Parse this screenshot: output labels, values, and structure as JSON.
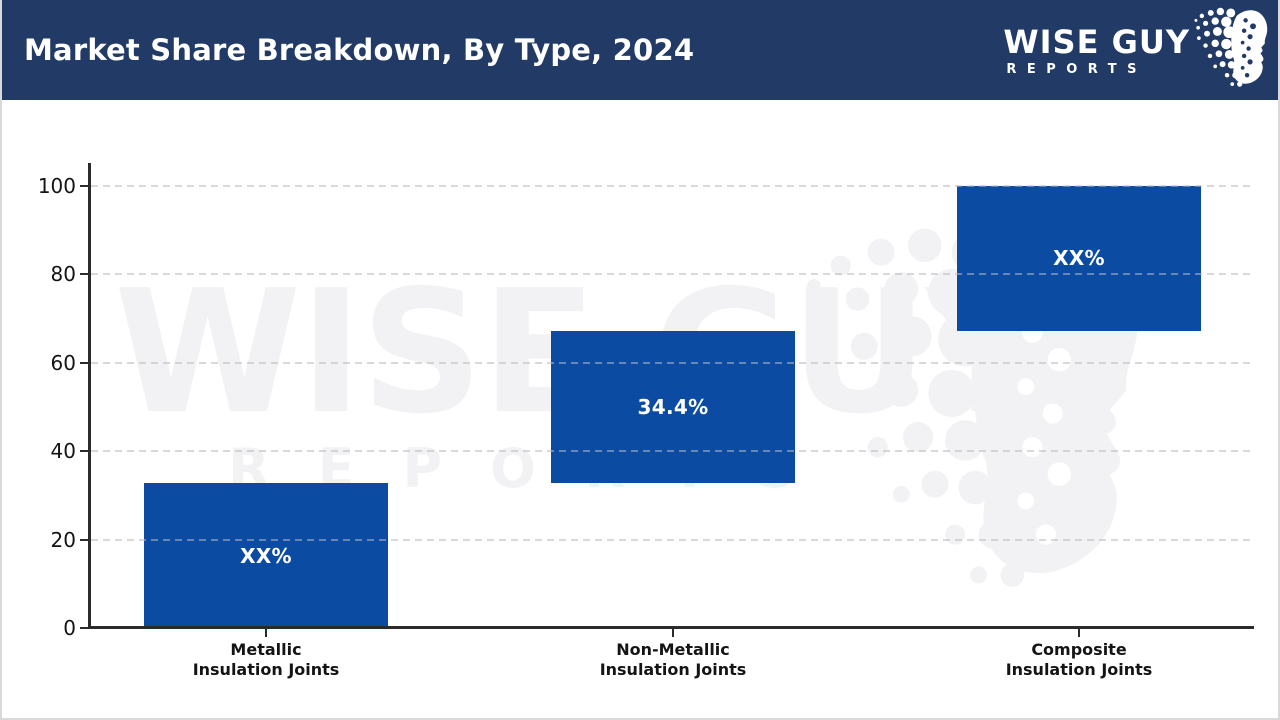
{
  "brand": {
    "name": "WISE GUY",
    "sub": "REPORTS"
  },
  "colors": {
    "header_bg": "#213a66",
    "bar": "#0b4ba1",
    "bar_label": "#ffffff",
    "axis": "#2b2b2b",
    "gridline": "#e4e4e6",
    "watermark": "#f2f2f4",
    "frame_border": "#d9d9dc"
  },
  "chart_data": {
    "type": "bar",
    "variant": "waterfall",
    "title": "Market Share Breakdown, By Type, 2024",
    "categories": [
      "Metallic Insulation Joints",
      "Non-Metallic Insulation Joints",
      "Composite Insulation Joints"
    ],
    "category_lines": [
      [
        "Metallic",
        "Insulation Joints"
      ],
      [
        "Non-Metallic",
        "Insulation Joints"
      ],
      [
        "Composite",
        "Insulation Joints"
      ]
    ],
    "segments": [
      {
        "category": "Metallic Insulation Joints",
        "start": 0,
        "end": 32.8,
        "label": "XX%"
      },
      {
        "category": "Non-Metallic Insulation Joints",
        "start": 32.8,
        "end": 67.2,
        "label": "34.4%"
      },
      {
        "category": "Composite Insulation Joints",
        "start": 67.2,
        "end": 100,
        "label": "XX%"
      }
    ],
    "ylim": [
      0,
      100
    ],
    "yticks": [
      0,
      20,
      40,
      60,
      80,
      100
    ],
    "xlabel": "",
    "ylabel": "",
    "grid": "horizontal-dashed",
    "legend": "none"
  }
}
